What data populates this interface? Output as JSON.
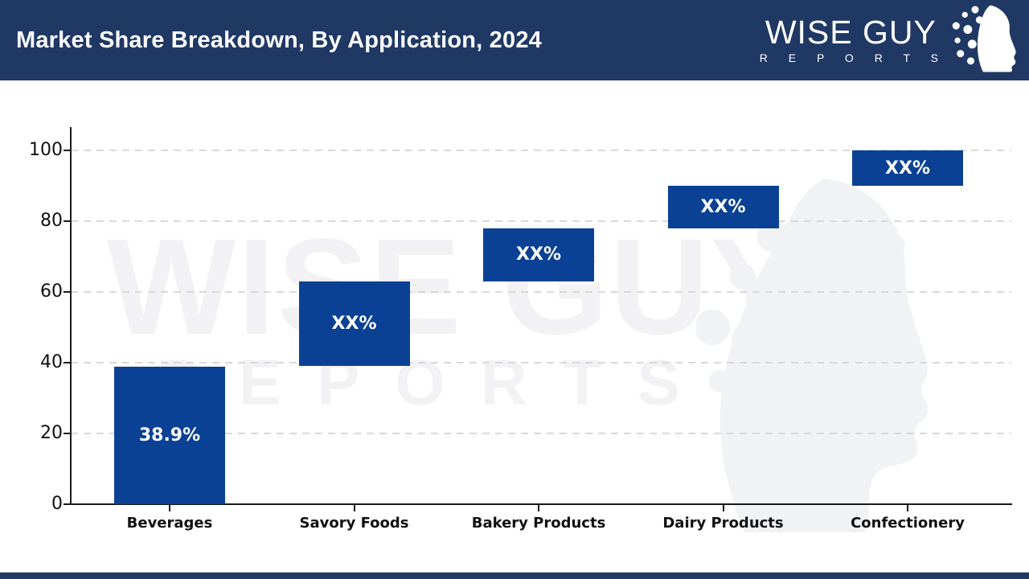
{
  "header": {
    "title": "Market Share Breakdown, By Application, 2024"
  },
  "logo": {
    "name_line": "WISE GUY",
    "reports_line": "R E P O R T S"
  },
  "watermark": {
    "name_line": "WISE GUY",
    "reports_line": "REPORTS"
  },
  "colors": {
    "header_bg": "#1f3864",
    "bar": "#0a4194",
    "grid": "#d9d9d9",
    "watermark": "#f2f2f5",
    "axis": "#1a1a1a",
    "bar_label": "#ffffff"
  },
  "chart_data": {
    "type": "bar",
    "subtype": "waterfall",
    "title": "Market Share Breakdown, By Application, 2024",
    "categories": [
      "Beverages",
      "Savory Foods",
      "Bakery Products",
      "Dairy Products",
      "Confectionery"
    ],
    "segments": [
      {
        "category": "Beverages",
        "start": 0,
        "end": 38.9,
        "label": "38.9%"
      },
      {
        "category": "Savory Foods",
        "start": 39,
        "end": 63,
        "label": "XX%"
      },
      {
        "category": "Bakery Products",
        "start": 63,
        "end": 78,
        "label": "XX%"
      },
      {
        "category": "Dairy Products",
        "start": 78,
        "end": 90,
        "label": "XX%"
      },
      {
        "category": "Confectionery",
        "start": 90,
        "end": 100,
        "label": "XX%"
      }
    ],
    "yticks": [
      0,
      20,
      40,
      60,
      80,
      100
    ],
    "ylim": [
      0,
      105
    ],
    "xlabel": "",
    "ylabel": "",
    "grid": "horizontal-dashed",
    "legend": "none"
  }
}
